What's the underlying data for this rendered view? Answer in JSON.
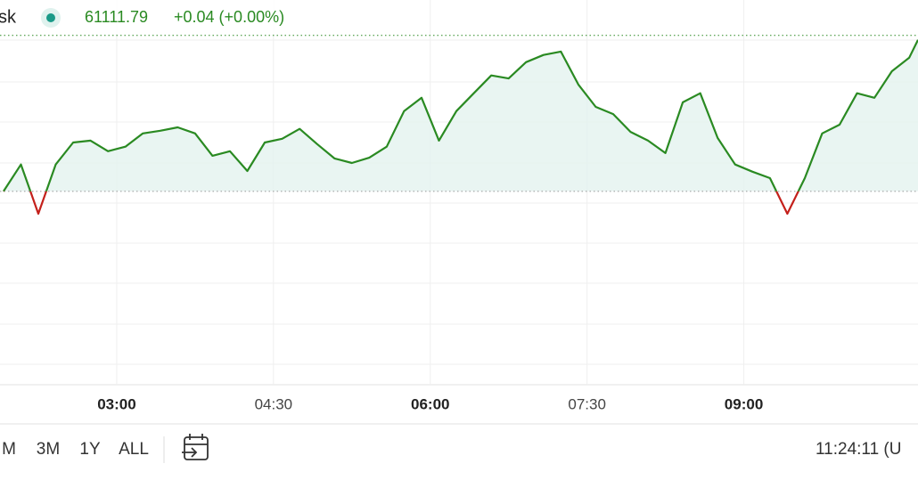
{
  "header": {
    "name": "sk",
    "price": "61111.79",
    "change": "+0.04 (+0.00%)"
  },
  "chart_data": {
    "type": "line",
    "x": [
      "01:55",
      "02:05",
      "02:15",
      "02:25",
      "02:35",
      "02:45",
      "02:55",
      "03:05",
      "03:15",
      "03:25",
      "03:35",
      "03:45",
      "03:55",
      "04:05",
      "04:15",
      "04:25",
      "04:35",
      "04:45",
      "04:55",
      "05:05",
      "05:15",
      "05:25",
      "05:35",
      "05:45",
      "05:55",
      "06:05",
      "06:15",
      "06:25",
      "06:35",
      "06:45",
      "06:55",
      "07:05",
      "07:15",
      "07:25",
      "07:35",
      "07:45",
      "07:55",
      "08:05",
      "08:15",
      "08:25",
      "08:35",
      "08:45",
      "08:55",
      "09:05",
      "09:15",
      "09:25",
      "09:35",
      "09:45",
      "09:55",
      "10:05",
      "10:15",
      "10:25",
      "10:35",
      "10:40"
    ],
    "values": [
      61111.75,
      61111.7571,
      61111.7441,
      61111.7571,
      61111.7629,
      61111.7634,
      61111.7606,
      61111.7618,
      61111.7653,
      61111.766,
      61111.7669,
      61111.7653,
      61111.7594,
      61111.7606,
      61111.7554,
      61111.7629,
      61111.7639,
      61111.7665,
      61111.7625,
      61111.7587,
      61111.7575,
      61111.7589,
      61111.7618,
      61111.7712,
      61111.7747,
      61111.7634,
      61111.7712,
      61111.7759,
      61111.7806,
      61111.7798,
      61111.7841,
      61111.786,
      61111.7869,
      61111.7782,
      61111.7723,
      61111.7704,
      61111.7657,
      61111.7634,
      61111.7601,
      61111.7735,
      61111.7759,
      61111.7641,
      61111.7571,
      61111.7552,
      61111.7535,
      61111.7441,
      61111.7535,
      61111.7653,
      61111.7676,
      61111.7759,
      61111.7747,
      61111.7817,
      61111.7853,
      61111.79
    ],
    "baseline": 61111.75,
    "color": "#2a8a22",
    "down_color": "#c4201b",
    "fill": "#e4f3ef",
    "xlim": [
      "01:53",
      "10:40"
    ],
    "ylim": [
      61111.699,
      61111.8005
    ],
    "xticks": [
      "03:00",
      "04:30",
      "06:00",
      "07:30",
      "09:00"
    ]
  },
  "toolbar": {
    "ranges": [
      "M",
      "3M",
      "1Y",
      "ALL"
    ],
    "clock": "11:24:11 (U"
  }
}
